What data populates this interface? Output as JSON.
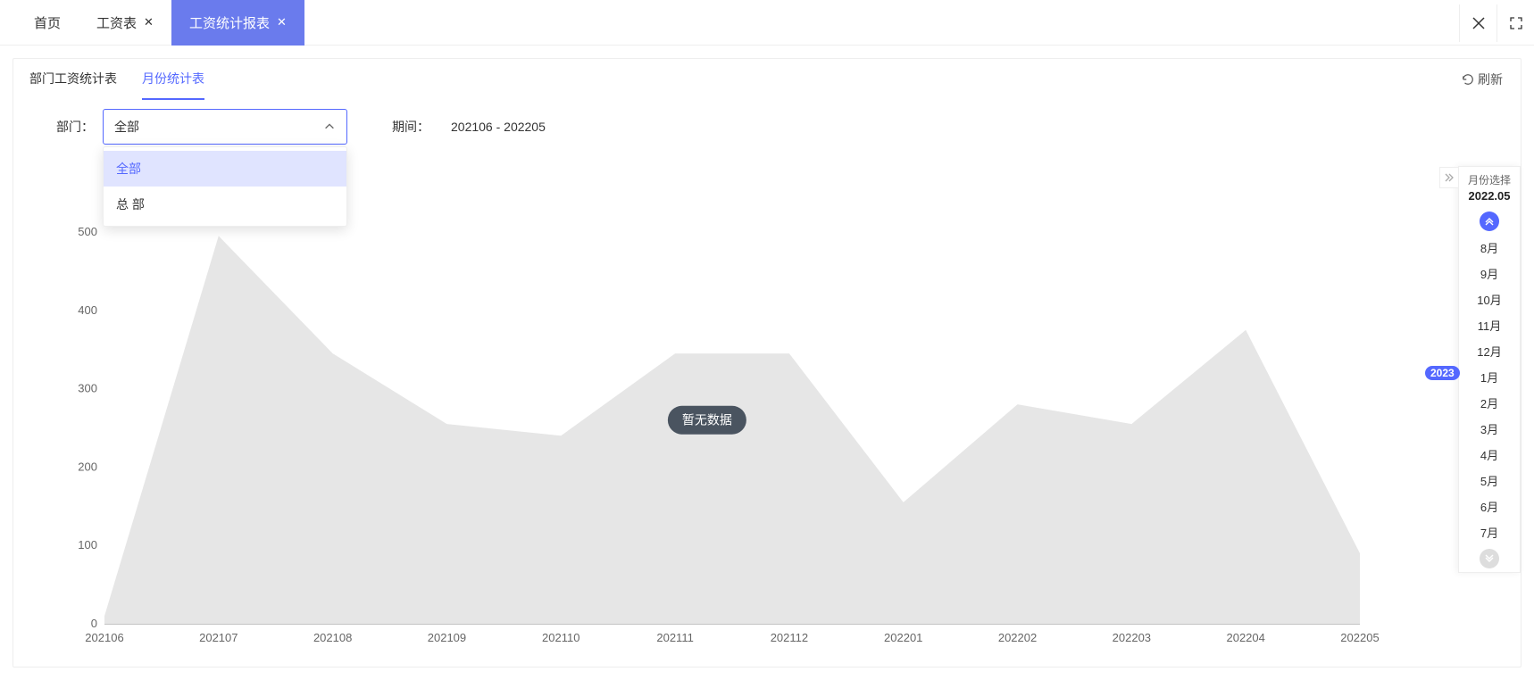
{
  "topbar": {
    "tabs": [
      {
        "label": "首页",
        "closable": false,
        "active": false
      },
      {
        "label": "工资表",
        "closable": true,
        "active": false
      },
      {
        "label": "工资统计报表",
        "closable": true,
        "active": true
      }
    ]
  },
  "sub_tabs": {
    "items": [
      {
        "label": "部门工资统计表",
        "active": false
      },
      {
        "label": "月份统计表",
        "active": true
      }
    ],
    "refresh_label": "刷新"
  },
  "filters": {
    "dept_label": "部门：",
    "dept_selected": "全部",
    "dept_options": [
      "全部",
      "总 部"
    ],
    "period_label": "期间：",
    "period_value": "202106 - 202205"
  },
  "chart": {
    "type": "area",
    "x_categories": [
      "202106",
      "202107",
      "202108",
      "202109",
      "202110",
      "202111",
      "202112",
      "202201",
      "202202",
      "202203",
      "202204",
      "202205"
    ],
    "values": [
      10,
      495,
      345,
      255,
      240,
      345,
      345,
      155,
      280,
      255,
      375,
      90
    ],
    "ylim": [
      0,
      500
    ],
    "ytick_step": 100,
    "yticks": [
      0,
      100,
      200,
      300,
      400,
      500
    ],
    "area_fill_color": "#e6e6e6",
    "axis_color": "#888888",
    "tick_label_color": "#666666",
    "tick_fontsize": 13,
    "background_color": "#ffffff",
    "no_data_label": "暂无数据",
    "no_data_pill_color": "#4a5460",
    "no_data_text_color": "#ffffff"
  },
  "month_picker": {
    "title": "月份选择",
    "current": "2022.05",
    "year_divider": "2023",
    "items": [
      "8月",
      "9月",
      "10月",
      "11月",
      "12月",
      "1月",
      "2月",
      "3月",
      "4月",
      "5月",
      "6月",
      "7月"
    ],
    "year_badge_after_index": 4
  },
  "colors": {
    "accent": "#5468ff",
    "toptab_active_bg": "#6a7bed"
  }
}
